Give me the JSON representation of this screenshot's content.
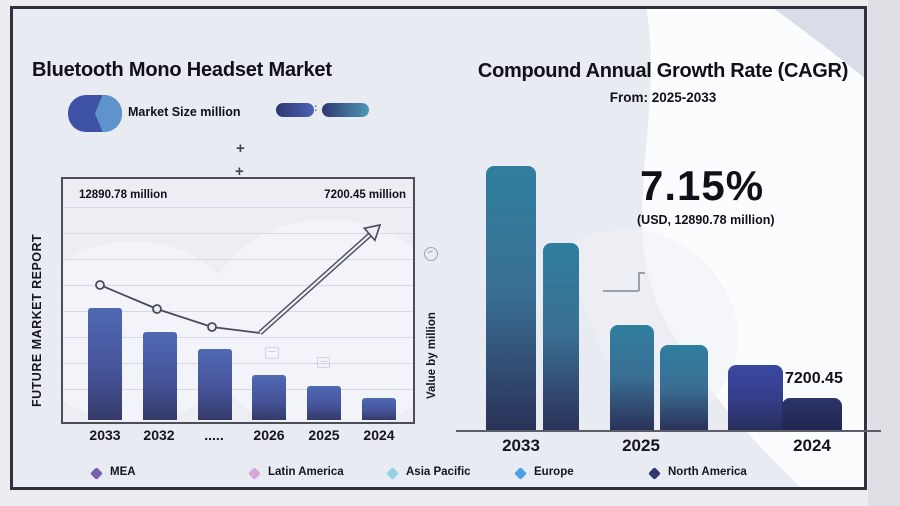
{
  "page": {
    "left_panel": {
      "title": "Bluetooth Mono Headset Market",
      "series_label": "Market Size million",
      "side_watermark": "FUTURE MARKET REPORT",
      "annotation_top_left": "12890.78 million",
      "annotation_top_right": "7200.45 million"
    },
    "right_panel": {
      "title": "Compound Annual Growth Rate (CAGR)",
      "subtitle": "From: 2025-2033",
      "cagr_value": "7.15%",
      "cagr_basis": "(USD, 12890.78 million)",
      "y_axis_label": "Value by million",
      "bar_annotation": "7200.45"
    },
    "legend": [
      {
        "label": "MEA",
        "color": "#7a5fae"
      },
      {
        "label": "Latin America",
        "color": "#d5a8da"
      },
      {
        "label": "Asia Pacific",
        "color": "#92d2e2"
      },
      {
        "label": "Europe",
        "color": "#4ba0e8"
      },
      {
        "label": "North America",
        "color": "#2e3a6e"
      }
    ]
  },
  "chart_data": [
    {
      "type": "bar",
      "panel": "market-size-forecast",
      "title": "Bluetooth Mono Headset Market",
      "unit": "USD million",
      "categories": [
        "2033",
        "2032",
        ".....",
        "2026",
        "2025",
        "2024"
      ],
      "values": [
        12890.78,
        11370,
        10300,
        8650,
        7960,
        7200.45
      ],
      "labeled_values": {
        "2033": 12890.78,
        "2024": 7200.45
      },
      "annotations": [
        {
          "text": "12890.78 million",
          "position": "top-left"
        },
        {
          "text": "7200.45 million",
          "position": "top-right"
        }
      ],
      "trend": {
        "shape": "line with circle markers declining over 2033-2026, then outlined arrow rising to top-right"
      },
      "ylim": [
        5800,
        21000
      ],
      "grid": true,
      "xlabel": "",
      "ylabel": ""
    },
    {
      "type": "bar",
      "panel": "cagr",
      "title": "Compound Annual Growth Rate (CAGR)",
      "subtitle": "From: 2025-2033",
      "cagr_percent": 7.15,
      "base_value_label": "(USD, 12890.78 million)",
      "categories": [
        "2033",
        "2025",
        "2024"
      ],
      "series": [
        {
          "name": "bar-1",
          "heights_rel": [
            1.0,
            0.4,
            0.249
          ]
        },
        {
          "name": "bar-2",
          "heights_rel": [
            0.709,
            0.324,
            0.125
          ]
        }
      ],
      "annotation": {
        "text": "7200.45",
        "attached_to": "2024"
      },
      "ylabel": "Value by million",
      "grid": false,
      "legend_position": "bottom"
    }
  ]
}
